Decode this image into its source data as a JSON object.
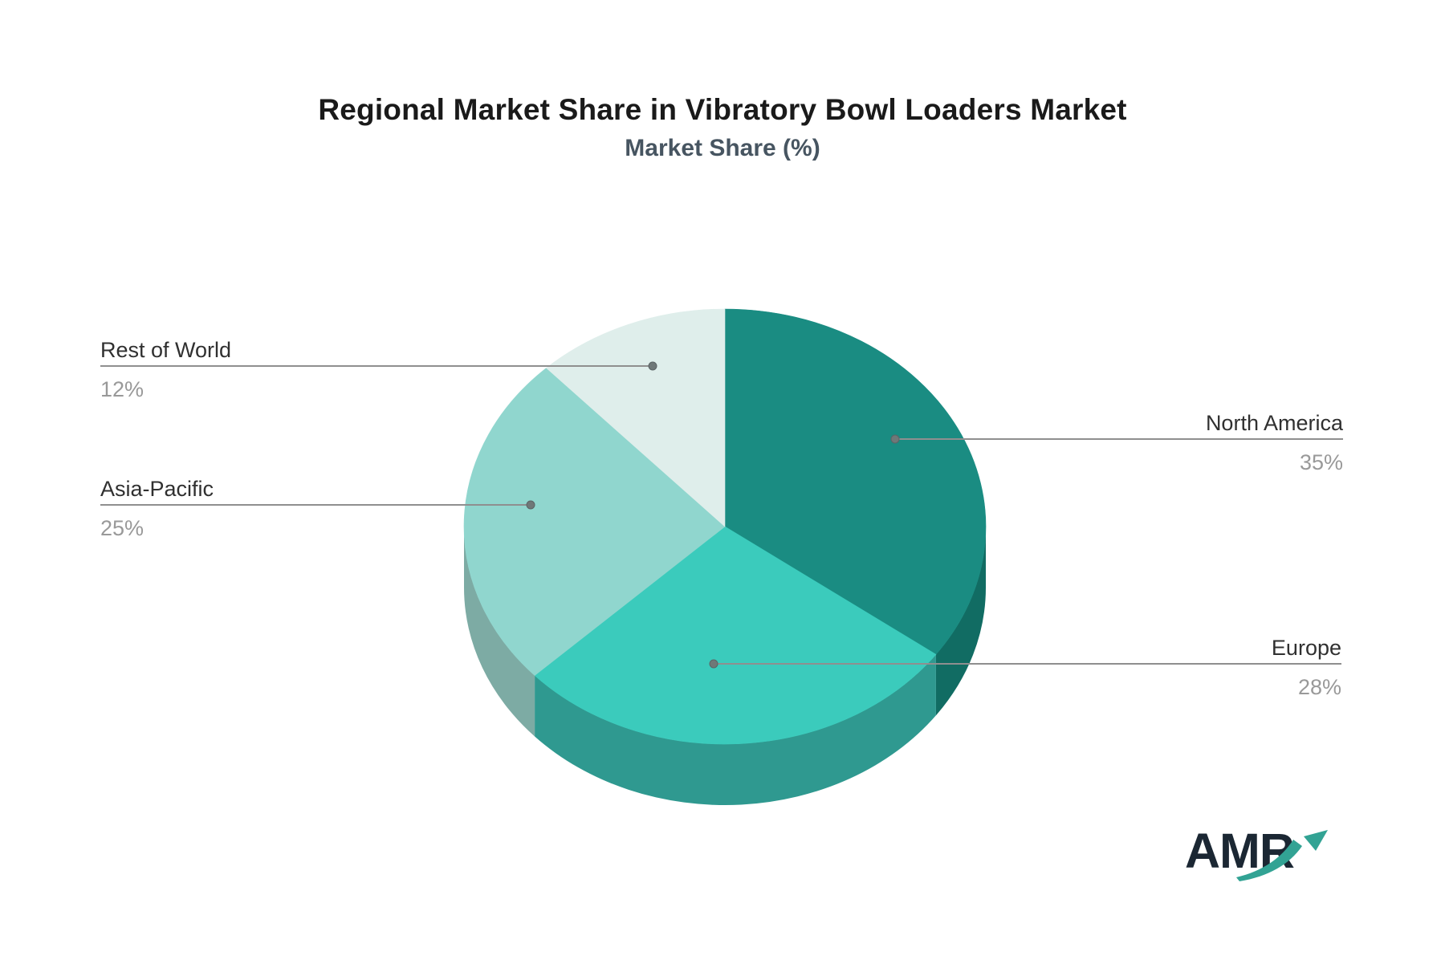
{
  "header": {
    "title": "Regional Market Share in Vibratory Bowl Loaders Market",
    "subtitle": "Market Share (%)"
  },
  "chart_data": {
    "type": "pie",
    "title": "Regional Market Share in Vibratory Bowl Loaders Market",
    "subtitle": "Market Share (%)",
    "unit": "%",
    "style": "3d-pie",
    "start_angle_deg": 0,
    "direction": "clockwise",
    "legend_position": "none",
    "label_style": "leader-lines",
    "background": "#ffffff",
    "slices": [
      {
        "label": "North America",
        "value": 35,
        "display": "35%",
        "color": "#1a8c82",
        "side_color": "#116c63"
      },
      {
        "label": "Europe",
        "value": 28,
        "display": "28%",
        "color": "#3bcbbc",
        "side_color": "#2f9990"
      },
      {
        "label": "Asia-Pacific",
        "value": 25,
        "display": "25%",
        "color": "#90d6ce",
        "side_color": "#7daba4"
      },
      {
        "label": "Rest of World",
        "value": 12,
        "display": "12%",
        "color": "#dfeeeb",
        "side_color": "#b9cdca"
      }
    ]
  },
  "logo": {
    "text": "AMR",
    "text_color": "#1b2733",
    "arrow_color": "#32a394"
  }
}
